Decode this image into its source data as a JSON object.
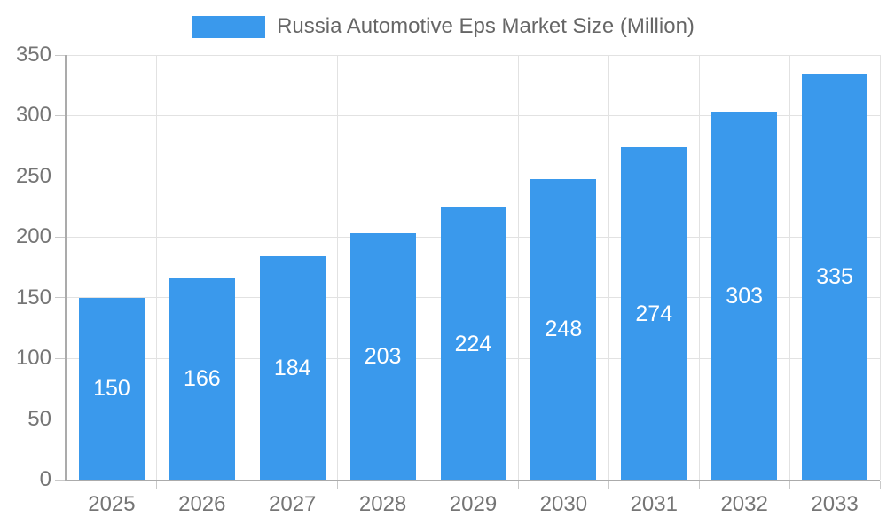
{
  "chart_data": {
    "type": "bar",
    "title": "Russia Automotive Eps Market Size (Million)",
    "series_name": "Russia Automotive Eps Market Size (Million)",
    "categories": [
      "2025",
      "2026",
      "2027",
      "2028",
      "2029",
      "2030",
      "2031",
      "2032",
      "2033"
    ],
    "values": [
      150,
      166,
      184,
      203,
      224,
      248,
      274,
      303,
      335
    ],
    "value_labels_position": "inside-center",
    "xlabel": "",
    "ylabel": "",
    "ylim": [
      0,
      350
    ],
    "yticks": [
      0,
      50,
      100,
      150,
      200,
      250,
      300,
      350
    ],
    "grid": true,
    "legend_position": "top-center",
    "colors": {
      "bar": "#3a99ec",
      "grid": "#e2e2e2",
      "axis": "#ababab",
      "tick": "#c9c9c9",
      "axis_text": "#757575",
      "legend_text": "#666666",
      "value_text": "#ffffff",
      "background": "#ffffff"
    }
  }
}
